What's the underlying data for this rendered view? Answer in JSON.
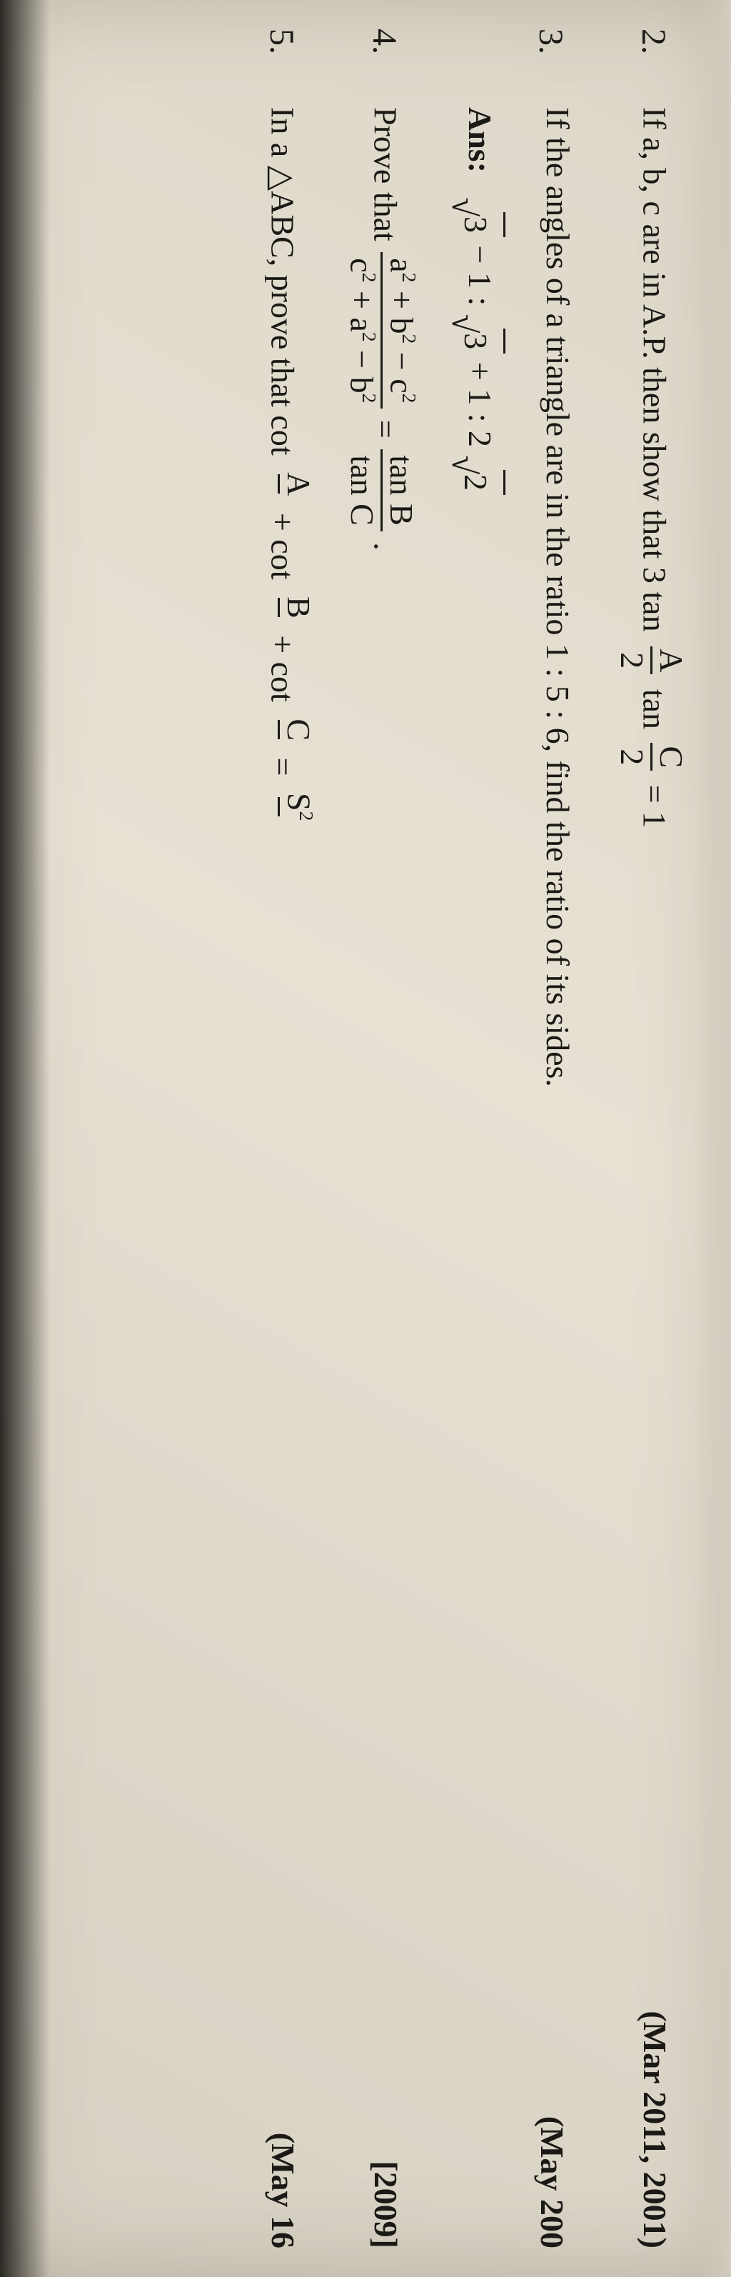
{
  "q2": {
    "number": "2.",
    "lead": "If a, b, c are in A.P. then show that ",
    "three": "3",
    "tan": "tan",
    "A": "A",
    "two1": "2",
    "C": "C",
    "two2": "2",
    "eq1": "= 1",
    "ref": "(Mar 2011, 2001)"
  },
  "q3": {
    "number": "3.",
    "text": "If the angles of a triangle are in the ratio 1 : 5 : 6, find the ratio of its sides.",
    "ref": "(May 200",
    "ans_label": "Ans:",
    "r1_rad": "3",
    "r1_tail": " − 1",
    "colon1": ":",
    "r2_rad": "3",
    "r2_tail": " + 1",
    "colon2": ":",
    "r3_lead": "2",
    "r3_rad": "2"
  },
  "q4": {
    "number": "4.",
    "lead": "Prove that ",
    "num": "a",
    "plus": " + b",
    "minus": " − c",
    "den_c": "c",
    "den_plus": " + a",
    "den_minus": " − b",
    "eq": "=",
    "tB": "tan B",
    "tC": "tan C",
    "dot": ".",
    "ref": "[2009]"
  },
  "q5": {
    "number": "5.",
    "lead": "In a △ABC, prove that ",
    "cot": "cot",
    "A": "A",
    "plus1": " + cot",
    "B": "B",
    "plus2": " + cot",
    "C": "C",
    "eq": " = ",
    "S2": "S",
    "ref": " (May 16"
  }
}
